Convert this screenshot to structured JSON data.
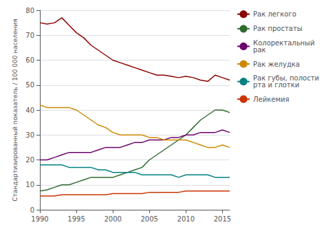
{
  "chart_data": {
    "type": "line",
    "ylabel": "Стандартизированный показатель / 100 000 населения",
    "x": [
      1990,
      1991,
      1992,
      1993,
      1994,
      1995,
      1996,
      1997,
      1998,
      1999,
      2000,
      2001,
      2002,
      2003,
      2004,
      2005,
      2006,
      2007,
      2008,
      2009,
      2010,
      2011,
      2012,
      2013,
      2014,
      2015,
      2016
    ],
    "series": [
      {
        "name": "Рак легкого",
        "color": "#8B0000",
        "values": [
          75,
          74.5,
          75,
          77,
          74,
          71,
          69,
          66,
          64,
          62,
          60,
          59,
          58,
          57,
          56,
          55,
          54,
          54,
          53.5,
          53,
          53.5,
          53,
          52,
          51.5,
          54,
          53,
          52
        ]
      },
      {
        "name": "Рак простаты",
        "color": "#2E6B2E",
        "values": [
          7.5,
          8,
          9,
          10,
          10,
          11,
          12,
          13,
          13,
          13,
          13,
          14,
          15,
          16,
          17,
          20,
          22,
          24,
          26,
          28,
          30,
          33,
          36,
          38,
          40,
          40,
          39
        ]
      },
      {
        "name": "Колоректальный\nрак",
        "color": "#6B006B",
        "values": [
          20,
          20,
          21,
          22,
          23,
          23,
          23,
          23,
          24,
          25,
          25,
          25,
          26,
          27,
          27,
          28,
          28,
          28,
          29,
          29,
          30,
          30,
          31,
          31,
          31,
          32,
          31
        ]
      },
      {
        "name": "Рак желудка",
        "color": "#CC8800",
        "values": [
          42,
          41,
          41,
          41,
          41,
          40,
          38,
          36,
          34,
          33,
          31,
          30,
          30,
          30,
          30,
          29,
          29,
          28,
          28,
          28,
          28,
          27,
          26,
          25,
          25,
          26,
          25
        ]
      },
      {
        "name": "Рак губы, полости\nрта и глотки",
        "color": "#008080",
        "values": [
          18,
          18,
          18,
          18,
          17,
          17,
          17,
          17,
          16,
          16,
          15,
          15,
          15,
          15,
          14,
          14,
          14,
          14,
          14,
          13,
          14,
          14,
          14,
          14,
          13,
          13,
          13
        ]
      },
      {
        "name": "Лейкемия",
        "color": "#CC3300",
        "values": [
          5.5,
          5.5,
          5.5,
          6,
          6,
          6,
          6,
          6,
          6,
          6,
          6.5,
          6.5,
          6.5,
          6.5,
          6.5,
          7,
          7,
          7,
          7,
          7,
          7.5,
          7.5,
          7.5,
          7.5,
          7.5,
          7.5,
          7.5
        ]
      }
    ],
    "xlim": [
      1990,
      2016
    ],
    "xticks": [
      1990,
      1995,
      2000,
      2005,
      2010,
      2015
    ],
    "ylim": [
      0,
      80
    ],
    "yticks": [
      0,
      10,
      20,
      30,
      40,
      50,
      60,
      70,
      80
    ],
    "grid": true,
    "legend": "right"
  }
}
